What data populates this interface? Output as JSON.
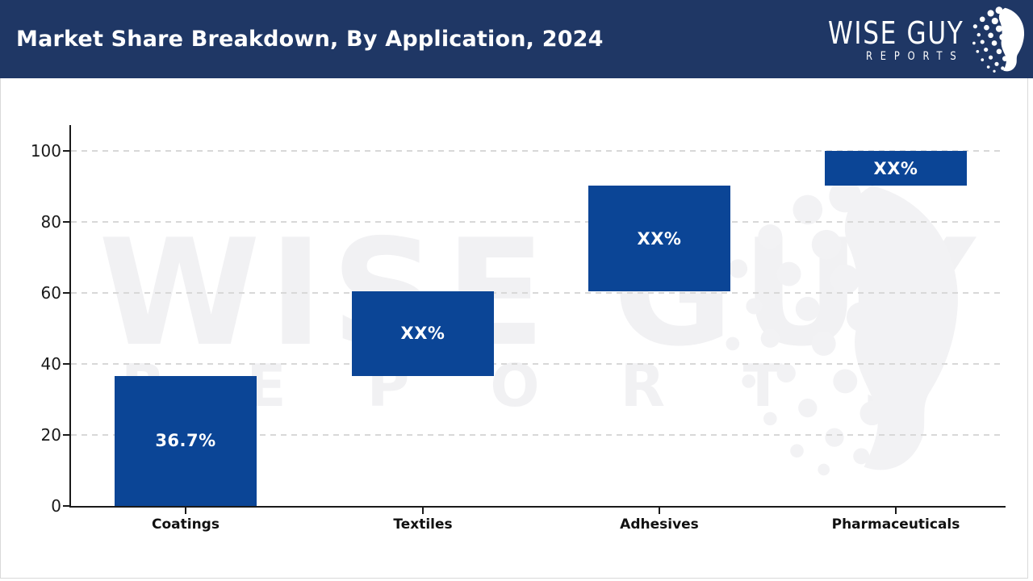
{
  "header": {
    "title": "Market Share Breakdown, By Application, 2024",
    "bg_color": "#1f3765",
    "logo": {
      "line1": "WISE GUY",
      "line2": "REPORTS"
    }
  },
  "watermark": {
    "line1": "WISE GUY",
    "line2": "REPORTS"
  },
  "chart_data": {
    "type": "bar",
    "subtype": "waterfall",
    "title": "Market Share Breakdown, By Application, 2024",
    "categories": [
      "Coatings",
      "Textiles",
      "Adhesives",
      "Pharmaceuticals"
    ],
    "segments": [
      {
        "category": "Coatings",
        "start": 0,
        "end": 36.7,
        "value": 36.7,
        "label": "36.7%"
      },
      {
        "category": "Textiles",
        "start": 36.7,
        "end": 60.4,
        "value": 23.7,
        "label": "XX%"
      },
      {
        "category": "Adhesives",
        "start": 60.4,
        "end": 90.2,
        "value": 29.8,
        "label": "XX%"
      },
      {
        "category": "Pharmaceuticals",
        "start": 90.2,
        "end": 100,
        "value": 9.8,
        "label": "XX%"
      }
    ],
    "xlabel": "",
    "ylabel": "",
    "yticks": [
      0,
      20,
      40,
      60,
      80,
      100
    ],
    "ylim": [
      0,
      107
    ],
    "grid": "horizontal-dashed",
    "legend": "none",
    "bar_color": "#0b4596",
    "bar_label_color": "#ffffff",
    "axis_color": "#1a1a1a",
    "grid_color": "#d8d8d8",
    "header_bg": "#1f3765"
  }
}
